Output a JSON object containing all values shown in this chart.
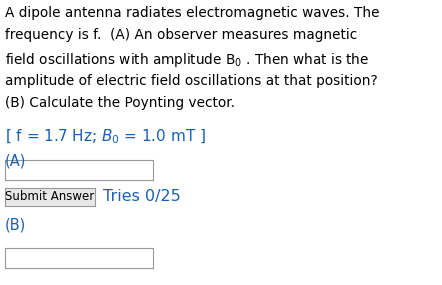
{
  "background_color": "#ffffff",
  "problem_text_lines": [
    "A dipole antenna radiates electromagnetic waves. The",
    "frequency is f.  (A) An observer measures magnetic",
    "field oscillations with amplitude B₀ . Then what is the",
    "amplitude of electric field oscillations at that position?",
    "(B) Calculate the Poynting vector."
  ],
  "params_color": "#1a5fb4",
  "label_A": "(A)",
  "label_B": "(B)",
  "submit_text": "Submit Answer",
  "tries_text": "Tries 0/25",
  "tries_color": "#1a5fb4",
  "problem_fontsize": 9.8,
  "params_fontsize": 11.0,
  "label_fontsize": 10.5,
  "submit_fontsize": 8.5,
  "tries_fontsize": 11.5
}
